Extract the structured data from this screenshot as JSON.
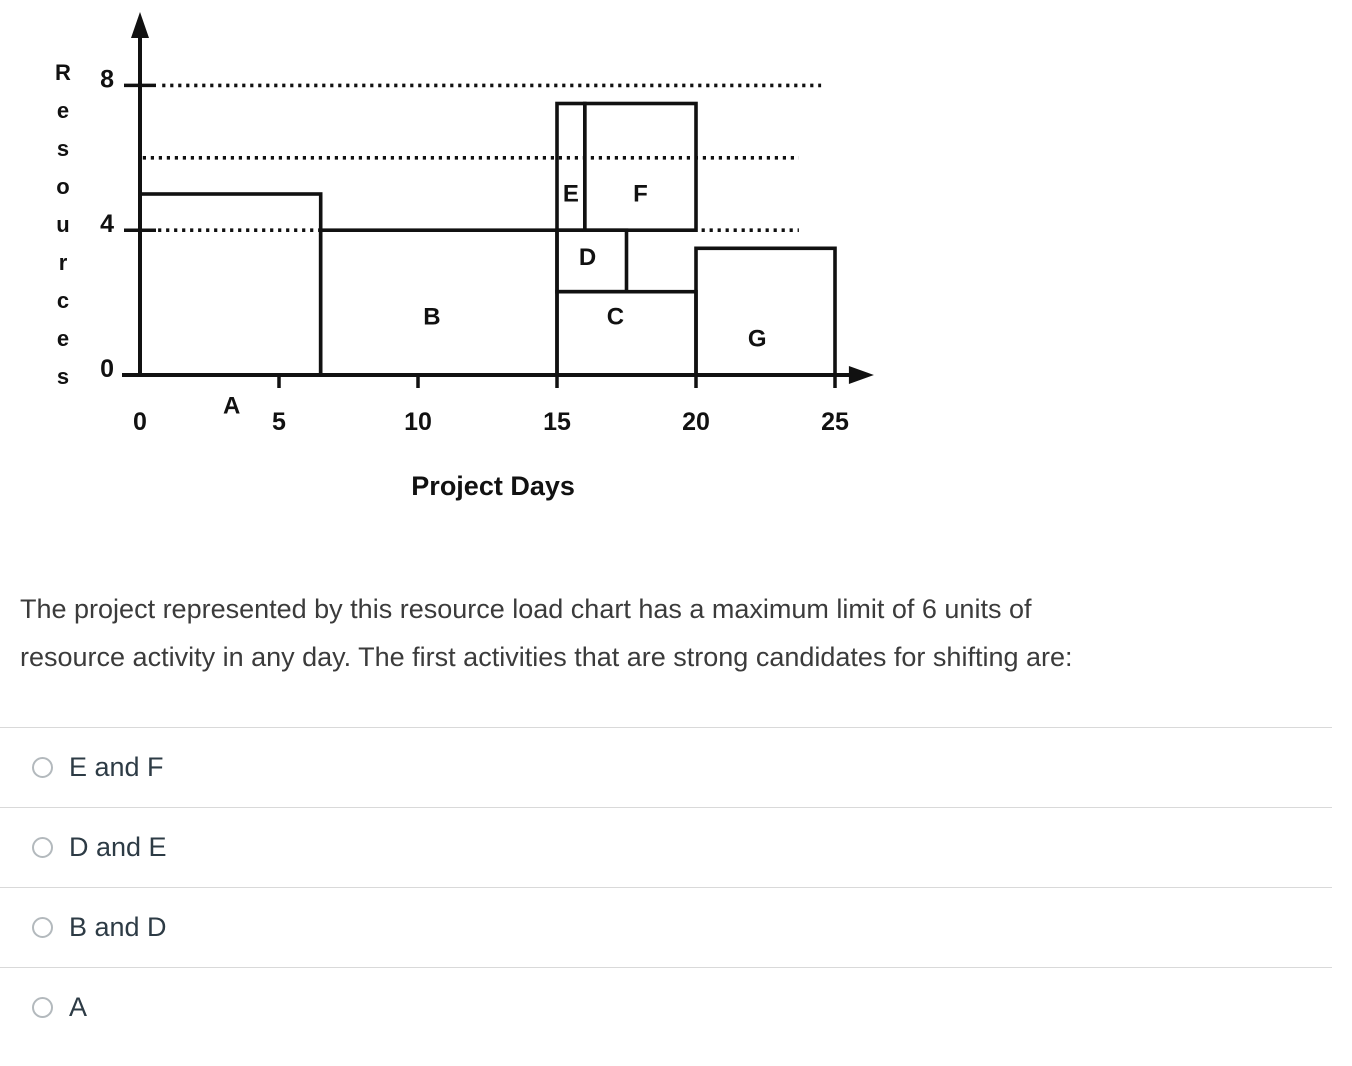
{
  "colors": {
    "background": "#ffffff",
    "chart_ink": "#111111",
    "question_text": "#3b3b3b",
    "option_text": "#2d3b45",
    "separator": "#d9d9d9",
    "radio_border": "#b3b9bd"
  },
  "chart_data": {
    "type": "step-area",
    "description": "Resource load chart: stacked activity blocks over project days with dotted resource-level limit lines",
    "xlabel": "Project Days",
    "ylabel": "Resources",
    "x_ticks": [
      0,
      5,
      10,
      15,
      20,
      25
    ],
    "y_ticks": [
      0,
      4,
      8
    ],
    "xlim": [
      0,
      26.5
    ],
    "ylim": [
      0,
      9
    ],
    "grid": "off",
    "limit_lines": [
      {
        "level": 8,
        "segments": [
          [
            0.8,
            24.5
          ]
        ]
      },
      {
        "level": 6,
        "segments": [
          [
            0.1,
            23.7
          ]
        ]
      },
      {
        "level": 4,
        "segments": [
          [
            0.65,
            6.5
          ],
          [
            20.2,
            23.7
          ]
        ]
      }
    ],
    "activities": [
      {
        "name": "A",
        "start": 0,
        "end": 6.5,
        "base": 0,
        "top": 5,
        "label_day": 3.3,
        "label_unit": -0.85
      },
      {
        "name": "B",
        "start": 6.5,
        "end": 15,
        "base": 0,
        "top": 4,
        "label_day": 10.5,
        "label_unit": 1.6
      },
      {
        "name": "C",
        "start": 15,
        "end": 20,
        "base": 0,
        "top": 2.3,
        "label_day": 17.1,
        "label_unit": 1.6
      },
      {
        "name": "D",
        "start": 15,
        "end": 17.5,
        "base": 2.3,
        "top": 4,
        "label_day": 16.1,
        "label_unit": 3.25
      },
      {
        "name": "E",
        "start": 15,
        "end": 16,
        "base": 4,
        "top": 7.5,
        "label_day": 15.5,
        "label_unit": 5.0
      },
      {
        "name": "F",
        "start": 16,
        "end": 20,
        "base": 4,
        "top": 7.5,
        "label_day": 18.0,
        "label_unit": 5.0
      },
      {
        "name": "G",
        "start": 20,
        "end": 25,
        "base": 0,
        "top": 3.5,
        "label_day": 22.2,
        "label_unit": 1.0
      }
    ]
  },
  "question": {
    "lines": [
      "The project represented by this resource load chart has a maximum limit of 6 units of",
      "resource activity in any day. The first activities that are strong candidates for shifting are:"
    ],
    "text": "The project represented by this resource load chart has a maximum limit of 6 units of resource activity in any day. The first activities that are strong candidates for shifting are:"
  },
  "options": [
    {
      "label": "E and F"
    },
    {
      "label": "D and E"
    },
    {
      "label": "B and D"
    },
    {
      "label": "A"
    }
  ]
}
